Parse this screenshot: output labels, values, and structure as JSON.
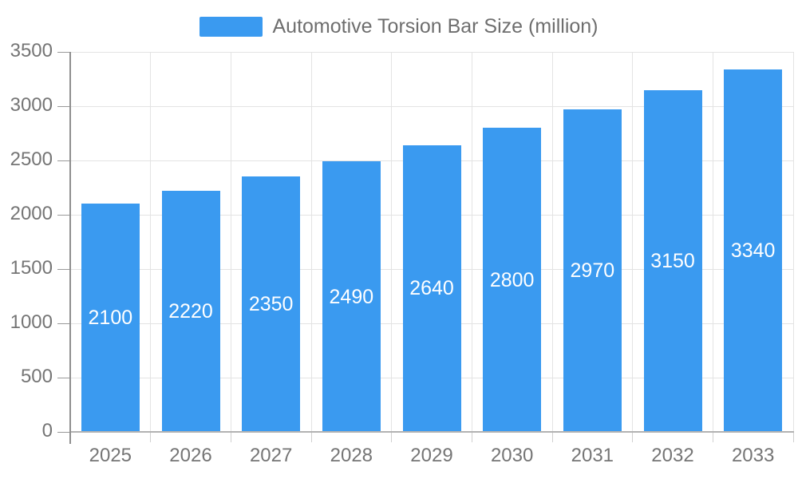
{
  "legend": {
    "label": "Automotive Torsion Bar Size (million)"
  },
  "chart_data": {
    "type": "bar",
    "title": "Automotive Torsion Bar Size (million)",
    "series_name": "Automotive Torsion Bar Size (million)",
    "categories": [
      "2025",
      "2026",
      "2027",
      "2028",
      "2029",
      "2030",
      "2031",
      "2032",
      "2033"
    ],
    "values": [
      2100,
      2220,
      2350,
      2490,
      2640,
      2800,
      2970,
      3150,
      3340
    ],
    "value_labels": [
      "2100",
      "2220",
      "2350",
      "2490",
      "2640",
      "2800",
      "2970",
      "3150",
      "3340"
    ],
    "xlabel": "",
    "ylabel": "",
    "ylim": [
      0,
      3500
    ],
    "yticks": [
      0,
      500,
      1000,
      1500,
      2000,
      2500,
      3000,
      3500
    ],
    "grid": true,
    "legend_position": "top",
    "bar_label_position": "inside-center"
  },
  "colors": {
    "bar": "#3A9AF0",
    "bar_value_label": "#FFFFFF",
    "axis_text": "#757575",
    "legend_text": "#6E6E6E",
    "gridline": "#E3E3E3",
    "y_axis_line": "#8F8F8F",
    "x_axis_line": "#B2B2B2",
    "y_tick": "#999999",
    "x_tick": "#CFCFCF",
    "background": "#FFFFFF"
  }
}
